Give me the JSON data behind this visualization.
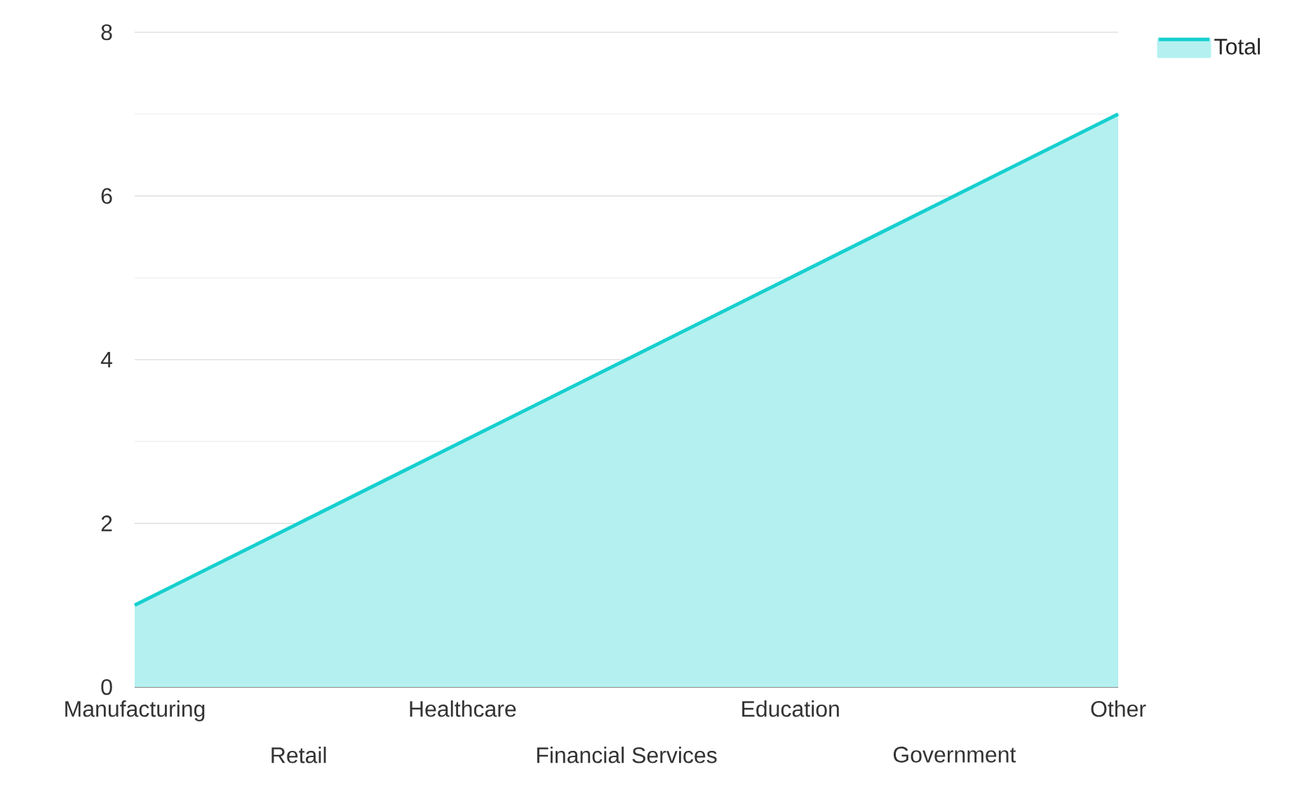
{
  "chart_data": {
    "type": "area",
    "categories": [
      "Manufacturing",
      "Retail",
      "Healthcare",
      "Financial Services",
      "Education",
      "Government",
      "Other"
    ],
    "series": [
      {
        "name": "Total",
        "color": "#16cfcf",
        "values": [
          1,
          2,
          3,
          4,
          5,
          6,
          7
        ]
      }
    ],
    "ylim": [
      0,
      8
    ],
    "yticks": [
      0,
      2,
      4,
      6,
      8
    ],
    "grid": "y",
    "legend": "top right"
  }
}
